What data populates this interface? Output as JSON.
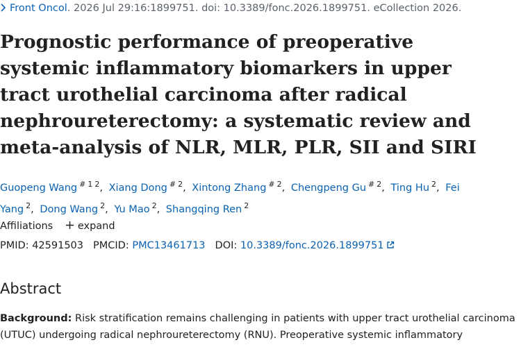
{
  "citation": {
    "journal": "Front Oncol",
    "details": ". 2026 Jul 29:16:1899751. doi: 10.3389/fonc.2026.1899751. eCollection 2026."
  },
  "title": "Prognostic performance of preoperative systemic inflammatory biomarkers in upper tract urothelial carcinoma after radical nephroureterectomy: a systematic review and meta-analysis of NLR, MLR, PLR, SII and SIRI",
  "authors": [
    {
      "name": "Guopeng Wang",
      "sup": [
        "#",
        "1",
        "2"
      ]
    },
    {
      "name": "Xiang Dong",
      "sup": [
        "#",
        "2"
      ]
    },
    {
      "name": "Xintong Zhang",
      "sup": [
        "#",
        "2"
      ]
    },
    {
      "name": "Chengpeng Gu",
      "sup": [
        "#",
        "2"
      ]
    },
    {
      "name": "Ting Hu",
      "sup": [
        "2"
      ]
    },
    {
      "name": "Fei Yang",
      "sup": [
        "2"
      ]
    },
    {
      "name": "Dong Wang",
      "sup": [
        "2"
      ]
    },
    {
      "name": "Yu Mao",
      "sup": [
        "2"
      ]
    },
    {
      "name": "Shangqing Ren",
      "sup": [
        "2"
      ]
    }
  ],
  "affiliations": {
    "label": "Affiliations",
    "toggle": "expand"
  },
  "identifiers": [
    {
      "label": "PMID:",
      "value": "42591503"
    },
    {
      "label": "PMCID:",
      "value": "PMC13461713"
    },
    {
      "label": "DOI:",
      "value": "10.3389/fonc.2026.1899751"
    }
  ],
  "abstract": {
    "heading": "Abstract",
    "label": "Background:",
    "text": "Risk stratification remains challenging in patients with upper tract urothelial carcinoma (UTUC) undergoing radical nephroureterectomy (RNU). Preoperative systemic inflammatory"
  }
}
